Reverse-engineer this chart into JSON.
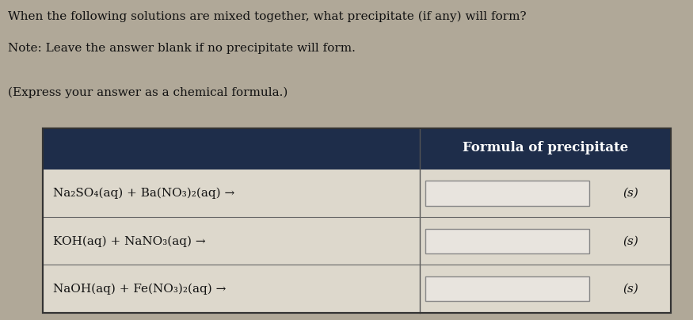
{
  "title_line1": "When the following solutions are mixed together, what precipitate (if any) will form?",
  "title_line2": "Note: Leave the answer blank if no precipitate will form.",
  "subtitle": "(Express your answer as a chemical formula.)",
  "header_text": "Formula of precipitate",
  "header_bg": "#1e2d4a",
  "header_text_color": "#ffffff",
  "cell_bg": "#ddd8cc",
  "answer_box_bg": "#e8e4de",
  "rows": [
    {
      "reaction_text": "Na₂SO₄(aq) + Ba(NO₃)₂(aq) →",
      "suffix": "(s)"
    },
    {
      "reaction_text": "KOH(aq) + NaNO₃(aq) →",
      "suffix": "(s)"
    },
    {
      "reaction_text": "NaOH(aq) + Fe(NO₃)₂(aq) →",
      "suffix": "(s)"
    }
  ],
  "bg_color": "#b0a898",
  "text_color": "#111111",
  "font_size_title": 11,
  "font_size_subtitle": 11,
  "font_size_table": 11,
  "font_size_header": 12
}
